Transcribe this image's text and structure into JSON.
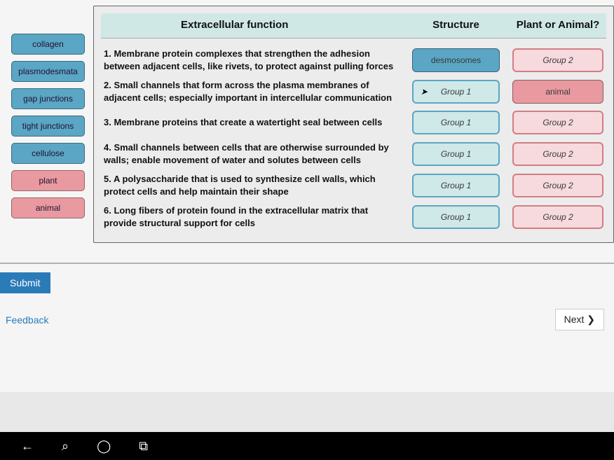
{
  "colors": {
    "blue_tile": "#5aa6c4",
    "pink_tile": "#e89aa0",
    "blue_empty_bg": "#cfe8e8",
    "pink_empty_bg": "#f6dadd",
    "header_bg": "#cfe8e6",
    "page_bg": "#e8e8e8",
    "submit_bg": "#2b7bb9",
    "taskbar_bg": "#000000"
  },
  "sidebar": {
    "items": [
      {
        "label": "collagen",
        "color": "blue"
      },
      {
        "label": "plasmodesmata",
        "color": "blue"
      },
      {
        "label": "gap junctions",
        "color": "blue"
      },
      {
        "label": "tight junctions",
        "color": "blue"
      },
      {
        "label": "cellulose",
        "color": "blue"
      },
      {
        "label": "plant",
        "color": "pink"
      },
      {
        "label": "animal",
        "color": "pink"
      }
    ]
  },
  "headers": {
    "col1": "Extracellular function",
    "col2": "Structure",
    "col3": "Plant or Animal?"
  },
  "rows": [
    {
      "desc": "1. Membrane protein complexes that strengthen the adhesion between adjacent cells, like rivets, to protect against pulling forces",
      "structure": {
        "label": "desmosomes",
        "filled": true
      },
      "category": {
        "label": "Group 2",
        "filled": false
      }
    },
    {
      "desc": "2. Small channels that form across the plasma membranes of adjacent cells; especially important in intercellular communication",
      "structure": {
        "label": "Group 1",
        "filled": false,
        "cursor": true
      },
      "category": {
        "label": "animal",
        "filled": true
      }
    },
    {
      "desc": "3. Membrane proteins that create a watertight seal between cells",
      "structure": {
        "label": "Group 1",
        "filled": false
      },
      "category": {
        "label": "Group 2",
        "filled": false
      }
    },
    {
      "desc": "4. Small channels between cells that are otherwise surrounded by walls; enable movement of water and solutes between cells",
      "structure": {
        "label": "Group 1",
        "filled": false
      },
      "category": {
        "label": "Group 2",
        "filled": false
      }
    },
    {
      "desc": "5. A polysaccharide that is used to synthesize cell walls, which protect cells and help maintain their shape",
      "structure": {
        "label": "Group 1",
        "filled": false
      },
      "category": {
        "label": "Group 2",
        "filled": false
      }
    },
    {
      "desc": "6. Long fibers of protein found in the extracellular matrix that provide structural support for cells",
      "structure": {
        "label": "Group 1",
        "filled": false
      },
      "category": {
        "label": "Group 2",
        "filled": false
      }
    }
  ],
  "buttons": {
    "submit": "Submit",
    "feedback": "Feedback",
    "next": "Next ❯"
  },
  "taskbar": {
    "back": "←",
    "search": "⌕",
    "circle": "◯",
    "taskview": "⧉"
  }
}
